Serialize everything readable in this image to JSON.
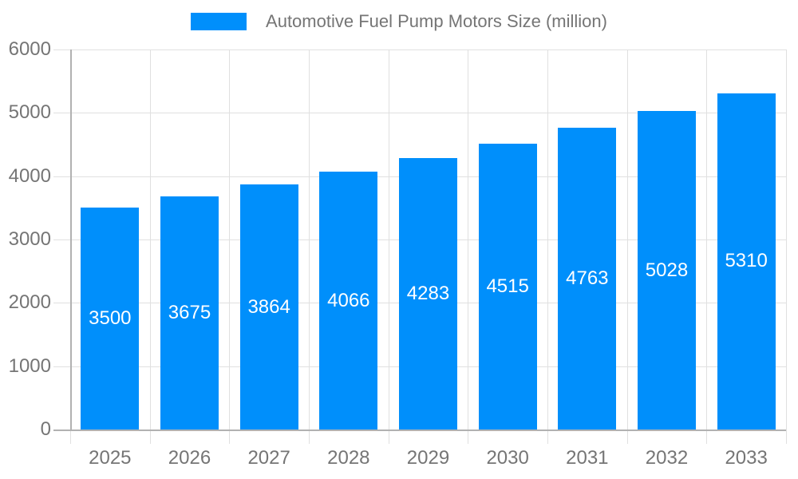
{
  "legend": {
    "label": "Automotive Fuel Pump Motors Size (million)"
  },
  "colors": {
    "bar": "#008FFB",
    "grid": "#e0e0e0",
    "axis_line": "#b1b1b1",
    "axis_label": "#757575",
    "bar_label": "#ffffff",
    "background": "#ffffff"
  },
  "chart_data": {
    "type": "bar",
    "title": "Automotive Fuel Pump Motors Size (million)",
    "categories": [
      "2025",
      "2026",
      "2027",
      "2028",
      "2029",
      "2030",
      "2031",
      "2032",
      "2033"
    ],
    "series": [
      {
        "name": "Automotive Fuel Pump Motors Size (million)",
        "values": [
          3500,
          3675,
          3864,
          4066,
          4283,
          4515,
          4763,
          5028,
          5310
        ]
      }
    ],
    "values": [
      3500,
      3675,
      3864,
      4066,
      4283,
      4515,
      4763,
      5028,
      5310
    ],
    "xlabel": "",
    "ylabel": "",
    "ylim": [
      0,
      6000
    ],
    "yticks": [
      0,
      1000,
      2000,
      3000,
      4000,
      5000,
      6000
    ],
    "grid": true,
    "legend_position": "top",
    "bar_label_position": "inside-center"
  }
}
